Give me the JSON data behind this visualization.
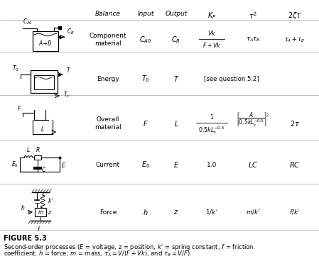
{
  "title": "FIGURE 5.3",
  "caption_line1": "Second-order processes ($E$ = voltage, $z$ = position, $k'$ = spring constant, $f$ = friction",
  "caption_line2": "coefficient, $h$ = force, $m$ = mass, $\\tau_A = V/(F + Vk)$, and $\\tau_B = V/F$).",
  "col_headers": [
    "Balance",
    "Input",
    "Output",
    "$K_P$",
    "$\\tau^2$",
    "$2\\zeta\\tau$"
  ],
  "row_labels": [
    "Component\nmaterial",
    "Energy",
    "Overall\nmaterial",
    "Current",
    "Force"
  ],
  "inputs": [
    "$C_{A0}$",
    "$T_0$",
    "$F$",
    "$E_0$",
    "$h$"
  ],
  "outputs": [
    "$C_B$",
    "$T$",
    "$L$",
    "$E$",
    "$z$"
  ],
  "bg_color": "#ffffff",
  "text_color": "#000000",
  "fig_width": 4.49,
  "fig_height": 3.89,
  "dpi": 100
}
